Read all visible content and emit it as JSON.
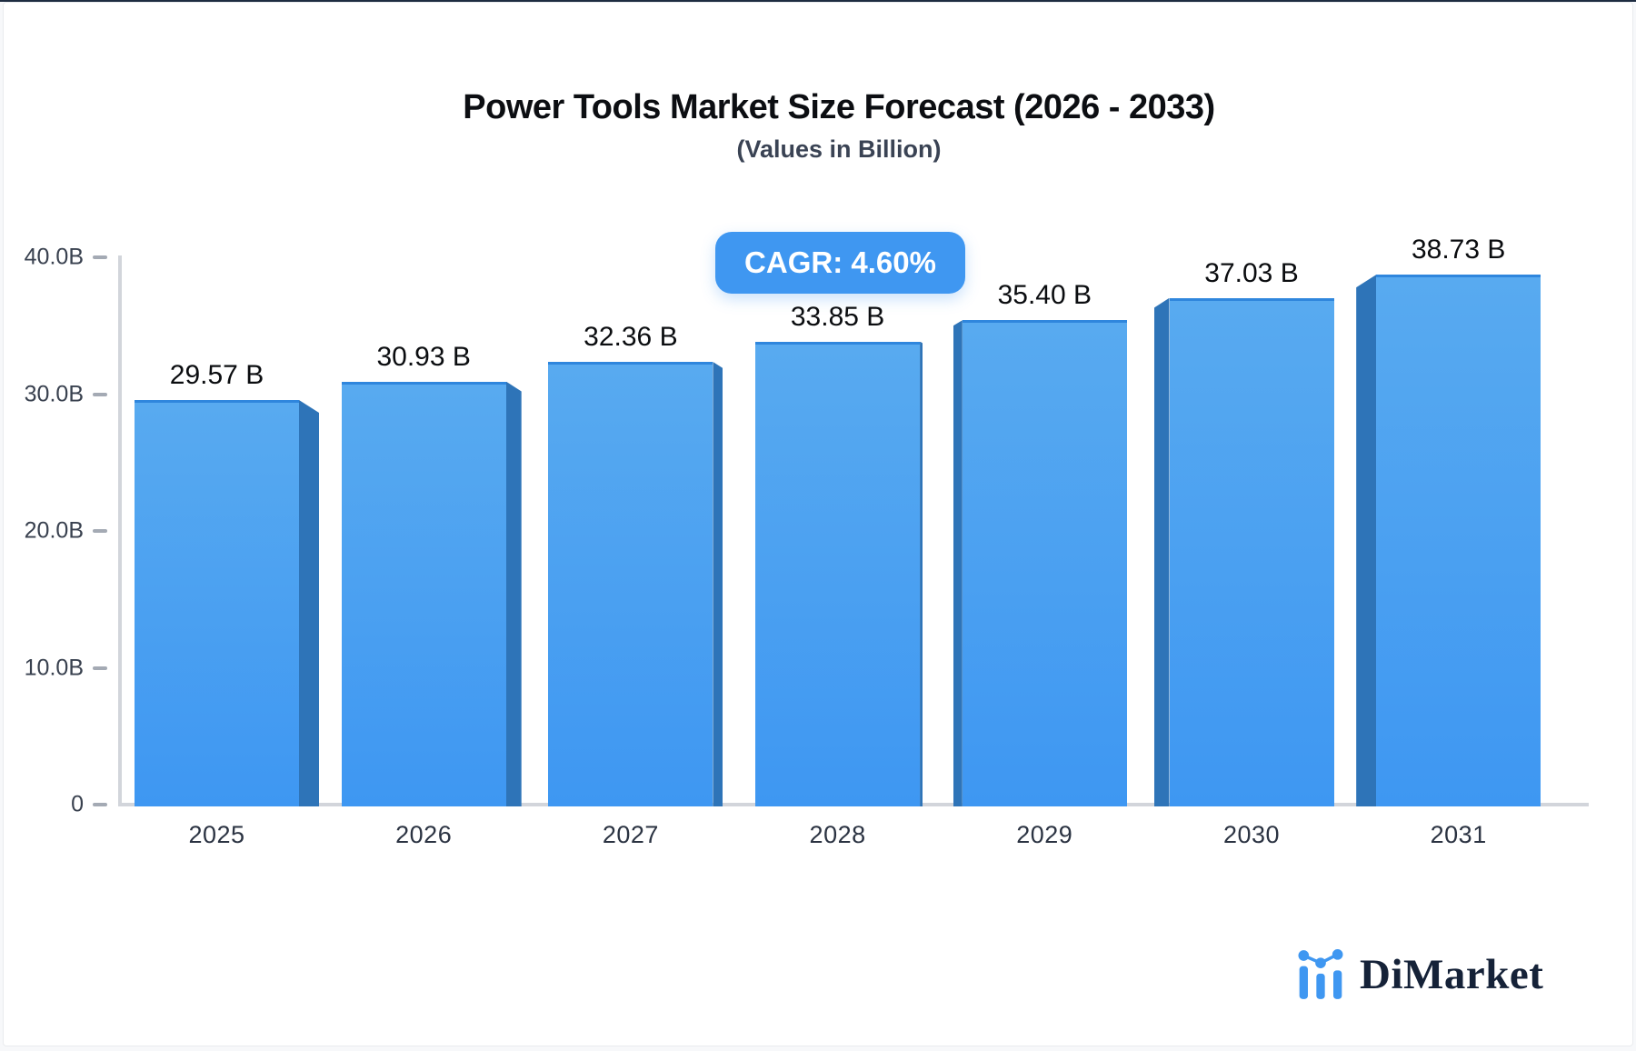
{
  "page": {
    "background": "#f7f8fa",
    "card_background": "#ffffff",
    "top_edge_color": "#1d2b40"
  },
  "header": {
    "title": "Power Tools Market Size Forecast (2026 - 2033)",
    "subtitle": "(Values in Billion)"
  },
  "badge": {
    "label": "CAGR: 4.60%",
    "background": "#3f97f1",
    "text_color": "#ffffff"
  },
  "chart_data": {
    "type": "bar",
    "title": "Power Tools Market Size Forecast (2026 - 2033)",
    "subtitle": "(Values in Billion)",
    "categories": [
      "2025",
      "2026",
      "2027",
      "2028",
      "2029",
      "2030",
      "2031"
    ],
    "values": [
      29.57,
      30.93,
      32.36,
      33.85,
      35.4,
      37.03,
      38.73
    ],
    "value_labels": [
      "29.57 B",
      "30.93 B",
      "32.36 B",
      "33.85 B",
      "35.40 B",
      "37.03 B",
      "38.73 B"
    ],
    "cagr_label": "CAGR: 4.60%",
    "xlabel": "",
    "ylabel": "",
    "ylim": [
      0,
      40
    ],
    "ytick_values": [
      0,
      10,
      20,
      30,
      40
    ],
    "ytick_labels": [
      "0",
      "10.0B",
      "20.0B",
      "30.0B",
      "40.0B"
    ],
    "grid": false,
    "legend": false,
    "style": "3d-extruded-bars",
    "bar_color_top": "#58aaf0",
    "bar_color_bottom": "#3e97f2",
    "bar_top_edge_color": "#2f86dd",
    "bar_side_color": "#2e74b8",
    "axis_color": "#d2d5db",
    "tick_color": "#a4aab4"
  },
  "logo": {
    "icon": "mini-bar-chart-icon",
    "icon_color": "#3f97f1",
    "text": "DiMarket",
    "text_color": "#152238"
  }
}
